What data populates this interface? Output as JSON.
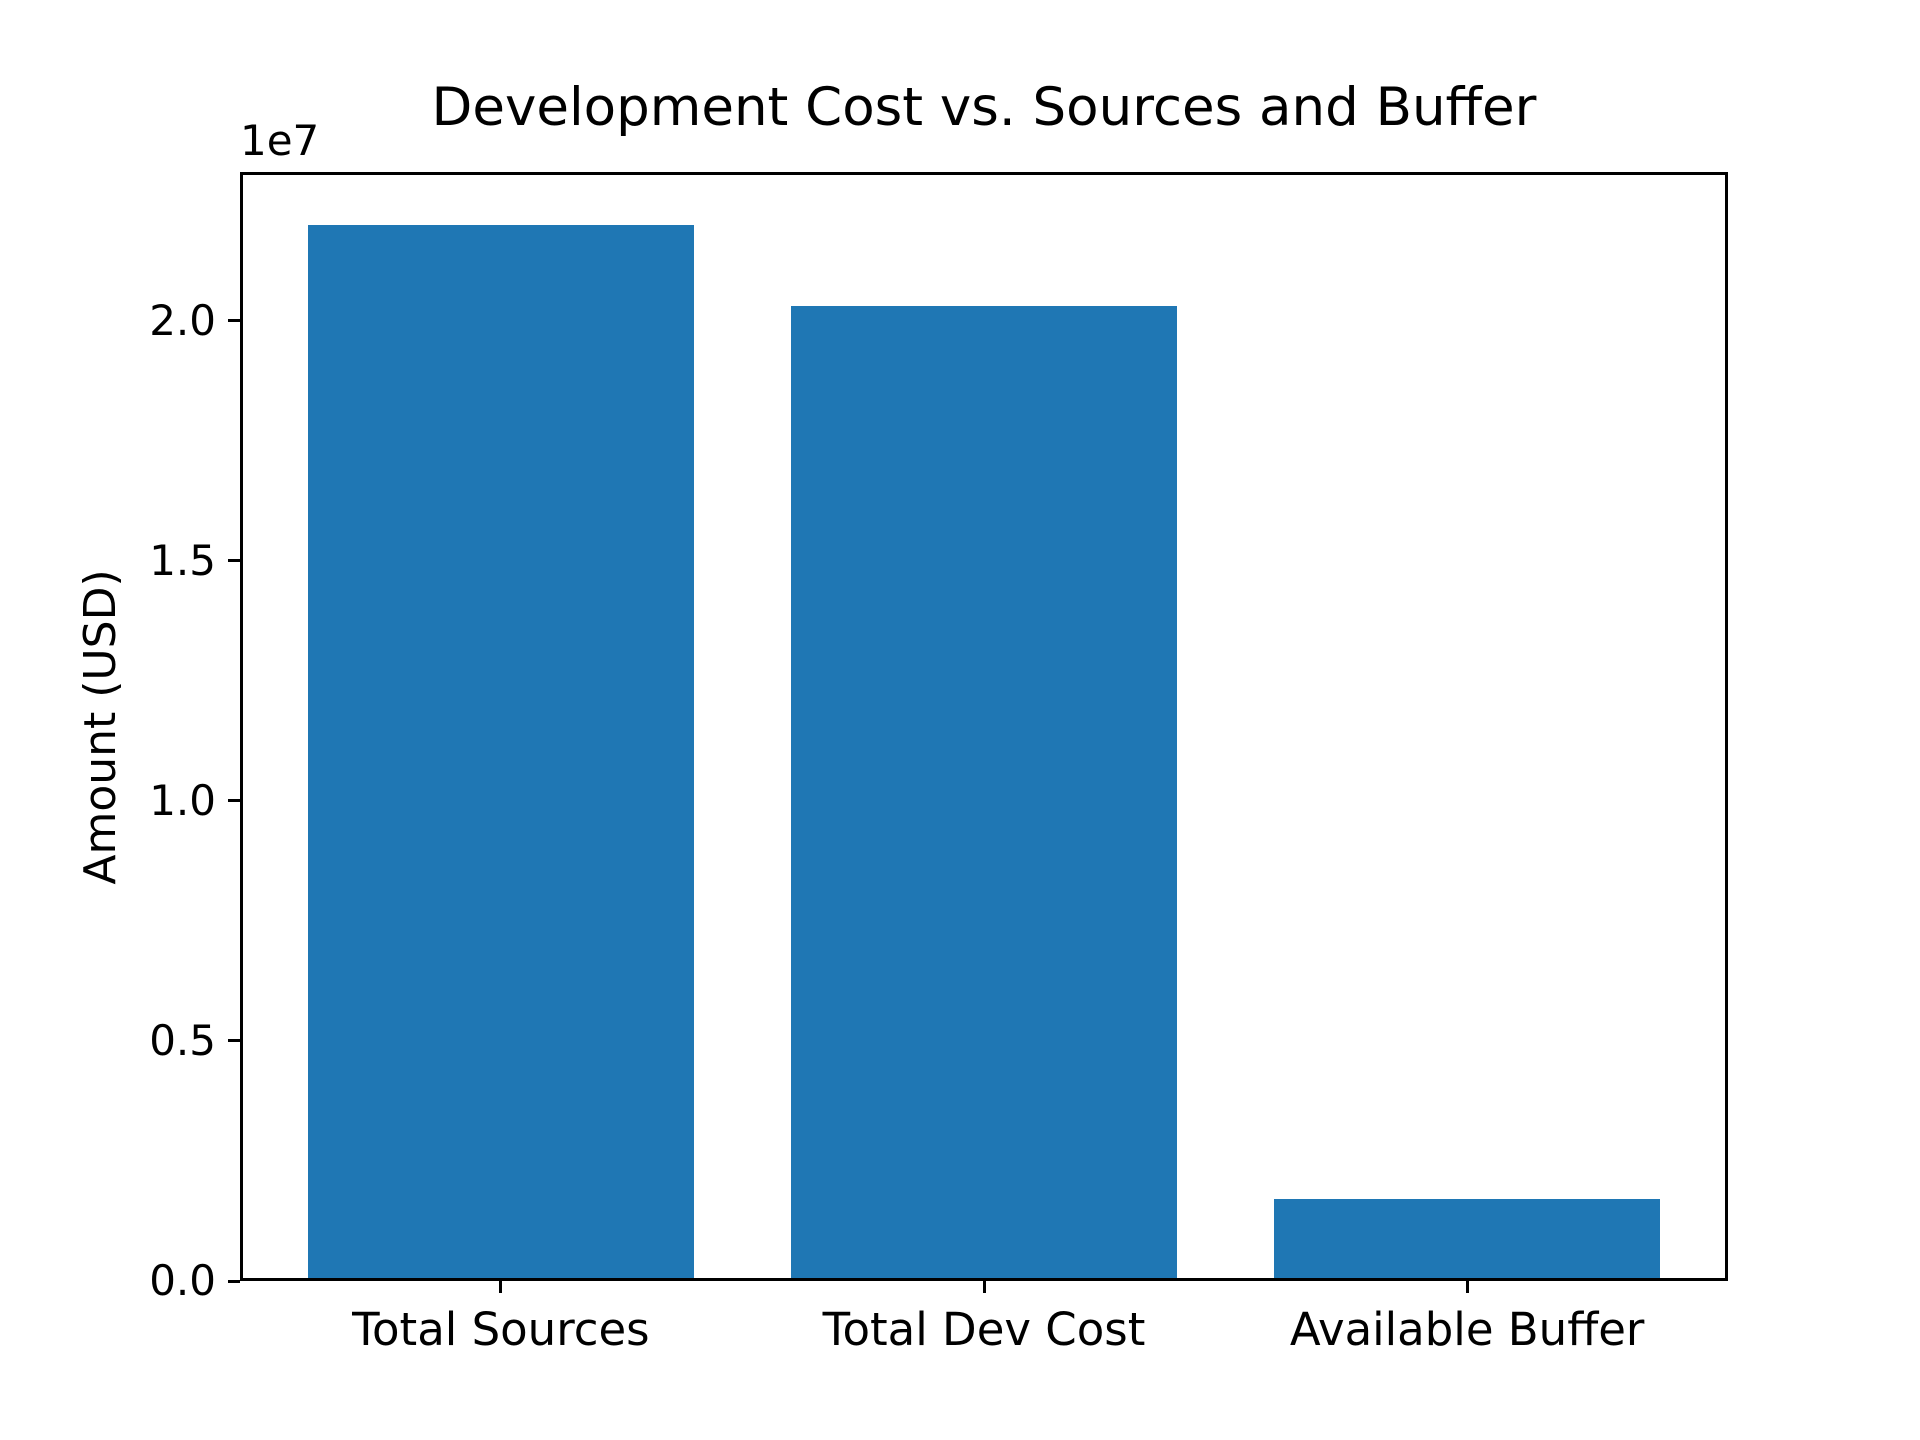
{
  "figure": {
    "background_color": "#ffffff",
    "text_color": "#000000"
  },
  "chart_data": {
    "type": "bar",
    "title": "Development Cost vs. Sources and Buffer",
    "xlabel": "",
    "ylabel": "Amount (USD)",
    "y_offset_text": "1e7",
    "categories": [
      "Total Sources",
      "Total Dev Cost",
      "Available Buffer"
    ],
    "values": [
      22000000,
      20300000,
      1700000
    ],
    "ylim": [
      0,
      23100000
    ],
    "yticks": [
      {
        "value": 0,
        "label": "0.0"
      },
      {
        "value": 5000000,
        "label": "0.5"
      },
      {
        "value": 10000000,
        "label": "1.0"
      },
      {
        "value": 15000000,
        "label": "1.5"
      },
      {
        "value": 20000000,
        "label": "2.0"
      }
    ],
    "bar_color": "#1f77b4",
    "grid": false,
    "legend": false
  }
}
